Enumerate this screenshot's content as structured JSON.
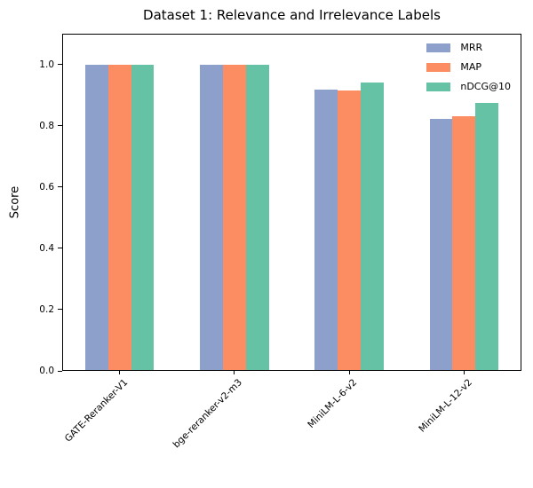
{
  "chart_data": {
    "type": "bar",
    "title": "Dataset 1: Relevance and Irrelevance Labels",
    "xlabel": "",
    "ylabel": "Score",
    "categories": [
      "GATE-Reranker-V1",
      "bge-reranker-v2-m3",
      "MiniLM-L-6-v2",
      "MiniLM-L-12-v2"
    ],
    "series": [
      {
        "name": "MRR",
        "color": "#8da0cb",
        "values": [
          1.0,
          1.0,
          0.917,
          0.823
        ]
      },
      {
        "name": "MAP",
        "color": "#fc8d62",
        "values": [
          1.0,
          1.0,
          0.914,
          0.83
        ]
      },
      {
        "name": "nDCG@10",
        "color": "#66c2a5",
        "values": [
          1.0,
          1.0,
          0.94,
          0.873
        ]
      }
    ],
    "ylim": [
      0,
      1.1
    ],
    "yticks": [
      0.0,
      0.2,
      0.4,
      0.6,
      0.8,
      1.0
    ],
    "bar_width_fraction": 0.2,
    "grid": false,
    "legend_position": "upper right",
    "x_tick_rotation_deg": 45,
    "axis_color": "#000000",
    "background_color": "#ffffff"
  }
}
